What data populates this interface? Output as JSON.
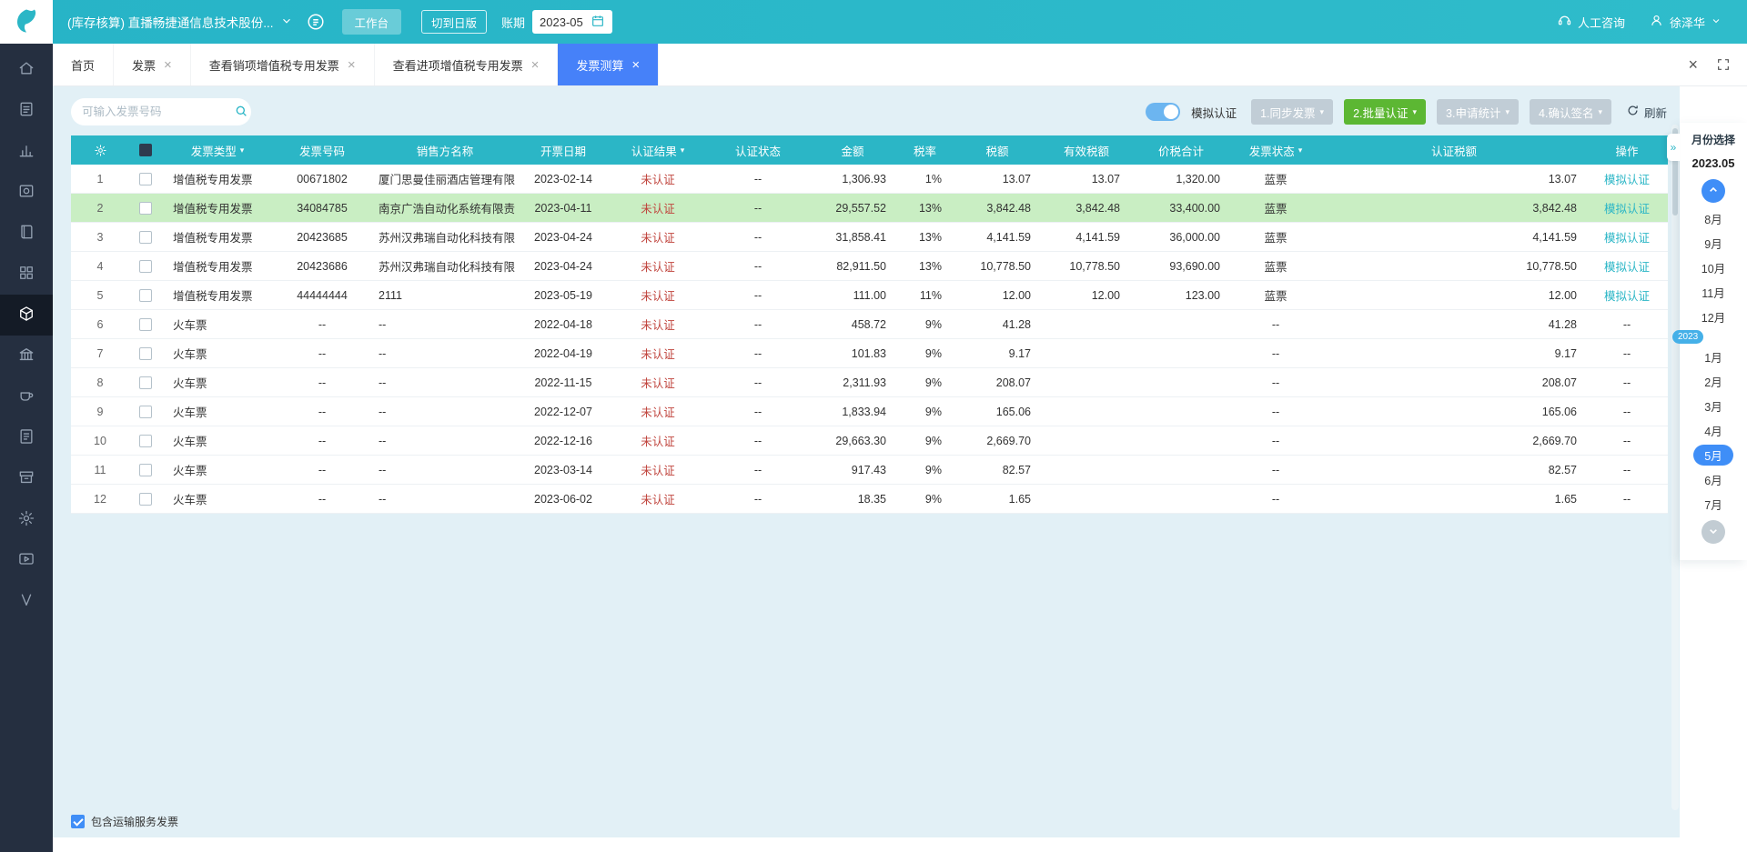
{
  "topbar": {
    "company": "(库存核算) 直播畅捷通信息技术股份...",
    "workbench": "工作台",
    "switch_daily": "切到日版",
    "period_label": "账期",
    "period_value": "2023-05",
    "consult": "人工咨询",
    "user": "徐泽华"
  },
  "sidebar": {
    "items": [
      "home",
      "form",
      "chart",
      "vault",
      "ledger",
      "apps",
      "goods",
      "bank",
      "tea",
      "voucher",
      "archive",
      "settings",
      "media",
      "brand"
    ],
    "active": "goods"
  },
  "tabs": [
    {
      "label": "首页",
      "closable": false,
      "active": false
    },
    {
      "label": "发票",
      "closable": true,
      "active": false
    },
    {
      "label": "查看销项增值税专用发票",
      "closable": true,
      "active": false
    },
    {
      "label": "查看进项增值税专用发票",
      "closable": true,
      "active": false
    },
    {
      "label": "发票测算",
      "closable": true,
      "active": true
    }
  ],
  "toolbar": {
    "search_placeholder": "可输入发票号码",
    "toggle_label": "模拟认证",
    "toggle_on": true,
    "buttons": [
      {
        "label": "1.同步发票",
        "style": "gray"
      },
      {
        "label": "2.批量认证",
        "style": "green"
      },
      {
        "label": "3.申请统计",
        "style": "gray"
      },
      {
        "label": "4.确认签名",
        "style": "gray"
      }
    ],
    "refresh_label": "刷新"
  },
  "table": {
    "columns": [
      {
        "icon": "gear"
      },
      {
        "icon": "checkbox"
      },
      {
        "label": "发票类型",
        "sort": true
      },
      {
        "label": "发票号码"
      },
      {
        "label": "销售方名称"
      },
      {
        "label": "开票日期"
      },
      {
        "label": "认证结果",
        "sort": true
      },
      {
        "label": "认证状态"
      },
      {
        "label": "金额"
      },
      {
        "label": "税率"
      },
      {
        "label": "税额"
      },
      {
        "label": "有效税额"
      },
      {
        "label": "价税合计"
      },
      {
        "label": "发票状态",
        "sort": true
      },
      {
        "label": "认证税额"
      },
      {
        "label": "操作"
      }
    ],
    "rows": [
      {
        "num": "1",
        "type": "增值税专用发票",
        "no": "00671802",
        "seller": "厦门思曼佳丽酒店管理有限",
        "date": "2023-02-14",
        "result": "未认证",
        "status": "--",
        "amount": "1,306.93",
        "rate": "1%",
        "tax": "13.07",
        "valid_tax": "13.07",
        "total": "1,320.00",
        "inv_status": "蓝票",
        "auth_tax": "13.07",
        "action": "模拟认证",
        "highlight": false
      },
      {
        "num": "2",
        "type": "增值税专用发票",
        "no": "34084785",
        "seller": "南京广浩自动化系统有限责",
        "date": "2023-04-11",
        "result": "未认证",
        "status": "--",
        "amount": "29,557.52",
        "rate": "13%",
        "tax": "3,842.48",
        "valid_tax": "3,842.48",
        "total": "33,400.00",
        "inv_status": "蓝票",
        "auth_tax": "3,842.48",
        "action": "模拟认证",
        "highlight": true
      },
      {
        "num": "3",
        "type": "增值税专用发票",
        "no": "20423685",
        "seller": "苏州汉弗瑞自动化科技有限",
        "date": "2023-04-24",
        "result": "未认证",
        "status": "--",
        "amount": "31,858.41",
        "rate": "13%",
        "tax": "4,141.59",
        "valid_tax": "4,141.59",
        "total": "36,000.00",
        "inv_status": "蓝票",
        "auth_tax": "4,141.59",
        "action": "模拟认证",
        "highlight": false
      },
      {
        "num": "4",
        "type": "增值税专用发票",
        "no": "20423686",
        "seller": "苏州汉弗瑞自动化科技有限",
        "date": "2023-04-24",
        "result": "未认证",
        "status": "--",
        "amount": "82,911.50",
        "rate": "13%",
        "tax": "10,778.50",
        "valid_tax": "10,778.50",
        "total": "93,690.00",
        "inv_status": "蓝票",
        "auth_tax": "10,778.50",
        "action": "模拟认证",
        "highlight": false
      },
      {
        "num": "5",
        "type": "增值税专用发票",
        "no": "44444444",
        "seller": "2111",
        "date": "2023-05-19",
        "result": "未认证",
        "status": "--",
        "amount": "111.00",
        "rate": "11%",
        "tax": "12.00",
        "valid_tax": "12.00",
        "total": "123.00",
        "inv_status": "蓝票",
        "auth_tax": "12.00",
        "action": "模拟认证",
        "highlight": false
      },
      {
        "num": "6",
        "type": "火车票",
        "no": "--",
        "seller": "--",
        "date": "2022-04-18",
        "result": "未认证",
        "status": "--",
        "amount": "458.72",
        "rate": "9%",
        "tax": "41.28",
        "valid_tax": "",
        "total": "",
        "inv_status": "--",
        "auth_tax": "41.28",
        "action": "--",
        "highlight": false
      },
      {
        "num": "7",
        "type": "火车票",
        "no": "--",
        "seller": "--",
        "date": "2022-04-19",
        "result": "未认证",
        "status": "--",
        "amount": "101.83",
        "rate": "9%",
        "tax": "9.17",
        "valid_tax": "",
        "total": "",
        "inv_status": "--",
        "auth_tax": "9.17",
        "action": "--",
        "highlight": false
      },
      {
        "num": "8",
        "type": "火车票",
        "no": "--",
        "seller": "--",
        "date": "2022-11-15",
        "result": "未认证",
        "status": "--",
        "amount": "2,311.93",
        "rate": "9%",
        "tax": "208.07",
        "valid_tax": "",
        "total": "",
        "inv_status": "--",
        "auth_tax": "208.07",
        "action": "--",
        "highlight": false
      },
      {
        "num": "9",
        "type": "火车票",
        "no": "--",
        "seller": "--",
        "date": "2022-12-07",
        "result": "未认证",
        "status": "--",
        "amount": "1,833.94",
        "rate": "9%",
        "tax": "165.06",
        "valid_tax": "",
        "total": "",
        "inv_status": "--",
        "auth_tax": "165.06",
        "action": "--",
        "highlight": false
      },
      {
        "num": "10",
        "type": "火车票",
        "no": "--",
        "seller": "--",
        "date": "2022-12-16",
        "result": "未认证",
        "status": "--",
        "amount": "29,663.30",
        "rate": "9%",
        "tax": "2,669.70",
        "valid_tax": "",
        "total": "",
        "inv_status": "--",
        "auth_tax": "2,669.70",
        "action": "--",
        "highlight": false
      },
      {
        "num": "11",
        "type": "火车票",
        "no": "--",
        "seller": "--",
        "date": "2023-03-14",
        "result": "未认证",
        "status": "--",
        "amount": "917.43",
        "rate": "9%",
        "tax": "82.57",
        "valid_tax": "",
        "total": "",
        "inv_status": "--",
        "auth_tax": "82.57",
        "action": "--",
        "highlight": false
      },
      {
        "num": "12",
        "type": "火车票",
        "no": "--",
        "seller": "--",
        "date": "2023-06-02",
        "result": "未认证",
        "status": "--",
        "amount": "18.35",
        "rate": "9%",
        "tax": "1.65",
        "valid_tax": "",
        "total": "",
        "inv_status": "--",
        "auth_tax": "1.65",
        "action": "--",
        "highlight": false
      }
    ]
  },
  "footer": {
    "transport_checkbox_label": "包含运输服务发票",
    "checked": true
  },
  "month_panel": {
    "title": "月份选择",
    "current": "2023.05",
    "year_badge": "2023",
    "badge_after": "12月",
    "months": [
      "8月",
      "9月",
      "10月",
      "11月",
      "12月",
      "1月",
      "2月",
      "3月",
      "4月",
      "5月",
      "6月",
      "7月"
    ],
    "selected": "5月"
  },
  "colors": {
    "primary_teal": "#2bb6c6",
    "active_tab_blue": "#4681f9",
    "button_green": "#5cb733",
    "row_highlight_green": "#c9eec3",
    "selected_month_blue": "#3f8ef7"
  }
}
